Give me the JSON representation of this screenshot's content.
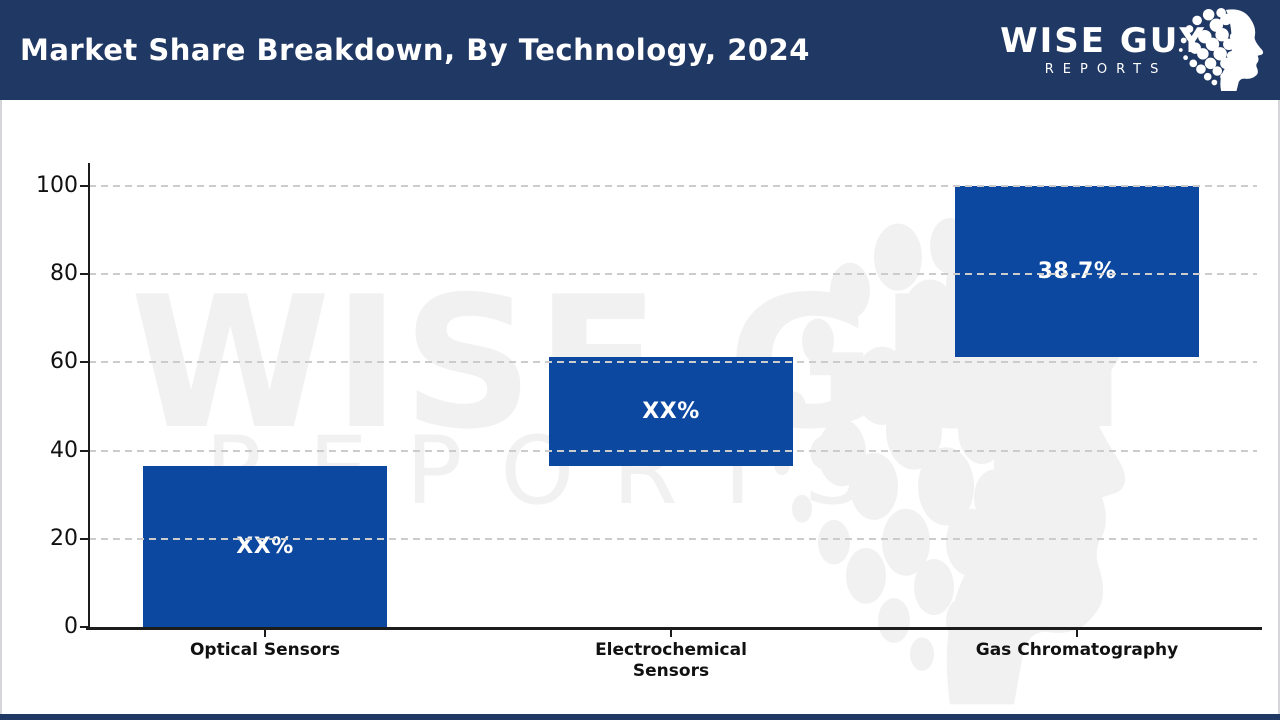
{
  "header": {
    "title": "Market Share Breakdown, By Technology, 2024",
    "brand": {
      "line1": "WISE GUY",
      "line2": "REPORTS"
    }
  },
  "watermark": {
    "line1": "WISE GUY",
    "line2": "REPORTS"
  },
  "colors": {
    "header_bg": "#203864",
    "footer_bg": "#203864",
    "bar_fill": "#0c47a0",
    "bar_label": "#ffffff",
    "axis": "#1c1c1c",
    "grid": "#cccccc",
    "watermark": "#f1f1f1",
    "page_border": "#d6d6da",
    "tick_text": "#111111"
  },
  "chart_data": {
    "type": "bar",
    "subtype": "waterfall",
    "title": "Market Share Breakdown, By Technology, 2024",
    "categories": [
      "Optical Sensors",
      "Electrochemical\nSensors",
      "Gas Chromatography"
    ],
    "bars": [
      {
        "category": "Optical Sensors",
        "label": "XX%",
        "start": 0,
        "end": 36.5
      },
      {
        "category": "Electrochemical Sensors",
        "label": "XX%",
        "start": 36.5,
        "end": 61.3
      },
      {
        "category": "Gas Chromatography",
        "label": "38.7%",
        "start": 61.3,
        "end": 100
      }
    ],
    "yticks": [
      0,
      20,
      40,
      60,
      80,
      100
    ],
    "ylim": [
      0,
      105
    ],
    "xlabel": "",
    "ylabel": "",
    "grid": "dashed-horizontal",
    "legend": false
  }
}
